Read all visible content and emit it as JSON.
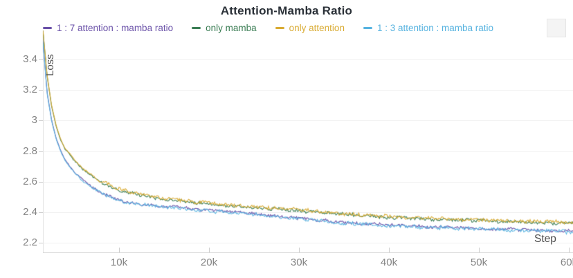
{
  "title": "Attention-Mamba Ratio",
  "legend": [
    {
      "label": "1 : 7 attention : mamba ratio",
      "color": "#6a51a8"
    },
    {
      "label": "only mamba",
      "color": "#3b7d54"
    },
    {
      "label": "only attention",
      "color": "#d9ab33"
    },
    {
      "label": "1 : 3 attention : mamba ratio",
      "color": "#57b3e0"
    }
  ],
  "axes": {
    "x": {
      "label": "Step",
      "tick_labels": [
        "10k",
        "20k",
        "30k",
        "40k",
        "50k",
        "60k"
      ],
      "tick_values": [
        10000,
        20000,
        30000,
        40000,
        50000,
        60000
      ]
    },
    "y": {
      "label": "Loss",
      "tick_labels": [
        "3.4",
        "3.2",
        "3",
        "2.8",
        "2.6",
        "2.4",
        "2.2"
      ],
      "tick_values": [
        3.4,
        3.2,
        3.0,
        2.8,
        2.6,
        2.4,
        2.2
      ]
    }
  },
  "chart_data": {
    "type": "line",
    "title": "Attention-Mamba Ratio",
    "xlabel": "Step",
    "ylabel": "Loss",
    "xlim": [
      1500,
      60500
    ],
    "ylim": [
      2.14,
      3.47
    ],
    "grid": "horizontal",
    "legend_position": "top",
    "x": [
      1500,
      2000,
      2500,
      3000,
      3500,
      4000,
      5000,
      6000,
      7000,
      8000,
      10000,
      12000,
      15000,
      20000,
      25000,
      30000,
      35000,
      40000,
      45000,
      50000,
      55000,
      60500
    ],
    "series": [
      {
        "name": "1 : 7 attention : mamba ratio",
        "color": "#6a51a8",
        "noise": 0.009,
        "values": [
          3.555,
          3.185,
          3.005,
          2.885,
          2.805,
          2.745,
          2.665,
          2.61,
          2.565,
          2.53,
          2.48,
          2.455,
          2.44,
          2.415,
          2.39,
          2.36,
          2.335,
          2.315,
          2.305,
          2.295,
          2.285,
          2.275
        ]
      },
      {
        "name": "only mamba",
        "color": "#3b7d54",
        "noise": 0.01,
        "values": [
          3.615,
          3.295,
          3.095,
          2.965,
          2.875,
          2.815,
          2.74,
          2.68,
          2.635,
          2.595,
          2.545,
          2.515,
          2.485,
          2.455,
          2.43,
          2.41,
          2.385,
          2.365,
          2.355,
          2.345,
          2.335,
          2.325
        ]
      },
      {
        "name": "only attention",
        "color": "#d9ab33",
        "noise": 0.011,
        "values": [
          3.62,
          3.3,
          3.1,
          2.97,
          2.88,
          2.82,
          2.745,
          2.685,
          2.64,
          2.6,
          2.55,
          2.52,
          2.49,
          2.46,
          2.435,
          2.415,
          2.39,
          2.37,
          2.36,
          2.35,
          2.34,
          2.33
        ]
      },
      {
        "name": "1 : 3 attention : mamba ratio",
        "color": "#57b3e0",
        "noise": 0.01,
        "values": [
          3.55,
          3.18,
          3.0,
          2.88,
          2.8,
          2.74,
          2.66,
          2.605,
          2.56,
          2.525,
          2.475,
          2.45,
          2.435,
          2.41,
          2.385,
          2.355,
          2.33,
          2.31,
          2.3,
          2.29,
          2.28,
          2.27
        ]
      }
    ]
  }
}
